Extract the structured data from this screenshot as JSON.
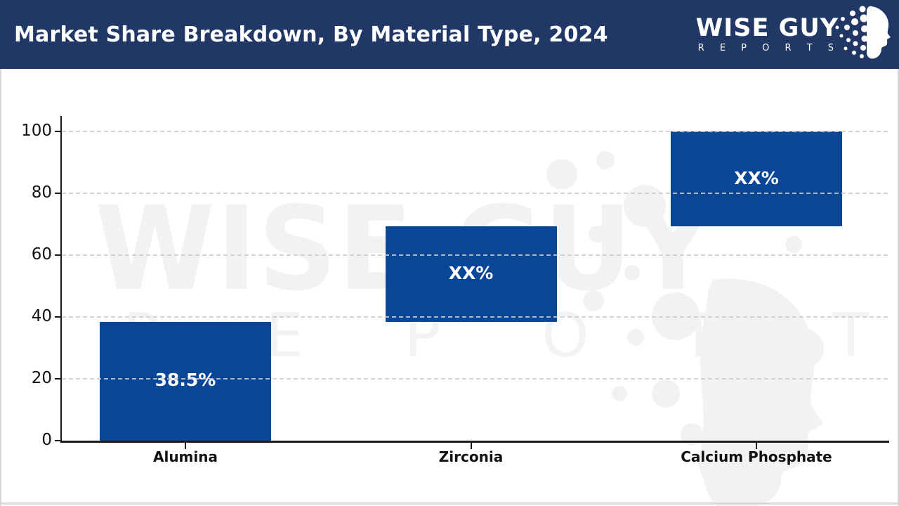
{
  "header": {
    "title": "Market Share Breakdown, By Material Type, 2024",
    "bg_color": "#213866",
    "logo": {
      "line1": "WISE GUY",
      "line2": "R E P O R T S"
    }
  },
  "watermark": {
    "line1": "WISE GUY",
    "line2": "R E P O R T S"
  },
  "chart_data": {
    "type": "bar",
    "subtype": "waterfall",
    "title": "Market Share Breakdown, By Material Type, 2024",
    "categories": [
      "Alumina",
      "Zirconia",
      "Calcium Phosphate"
    ],
    "segments": [
      {
        "category": "Alumina",
        "start": 0,
        "end": 38.5,
        "label": "38.5%"
      },
      {
        "category": "Zirconia",
        "start": 38.5,
        "end": 69.3,
        "label": "XX%"
      },
      {
        "category": "Calcium Phosphate",
        "start": 69.3,
        "end": 100,
        "label": "XX%"
      }
    ],
    "yticks": [
      0,
      20,
      40,
      60,
      80,
      100
    ],
    "ylim": [
      0,
      105
    ],
    "xlabel": "",
    "ylabel": "",
    "grid": "horizontal-dashed",
    "legend": "none",
    "bar_color": "#094698",
    "bar_label_color": "#ffffff",
    "axis_color": "#1a1a1a"
  }
}
